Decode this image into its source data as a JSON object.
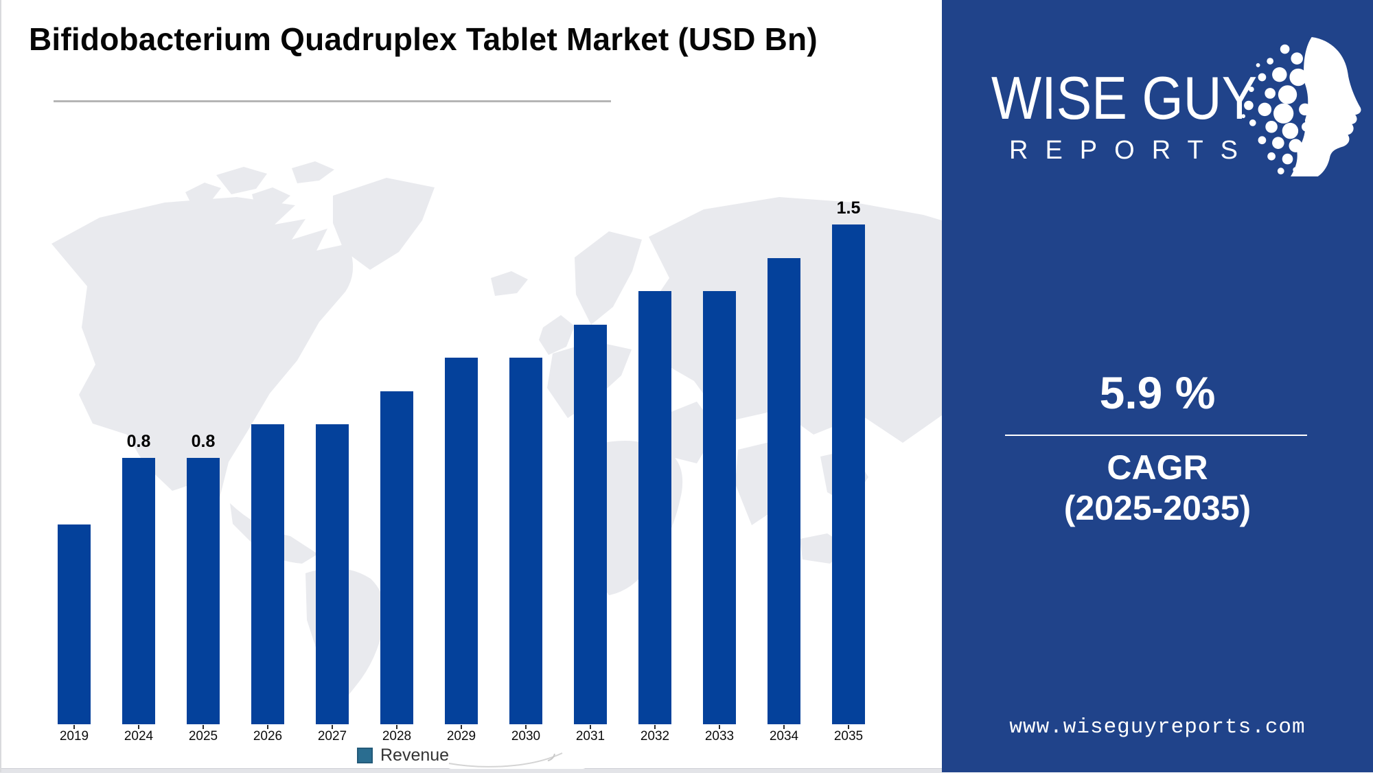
{
  "header": {
    "title": "Bifidobacterium Quadruplex Tablet Market (USD Bn)"
  },
  "chart_data": {
    "type": "bar",
    "title": "Bifidobacterium Quadruplex Tablet Market (USD Bn)",
    "unit": "USD Bn",
    "categories": [
      "2019",
      "2024",
      "2025",
      "2026",
      "2027",
      "2028",
      "2029",
      "2030",
      "2031",
      "2032",
      "2033",
      "2034",
      "2035"
    ],
    "values": [
      0.6,
      0.8,
      0.8,
      0.9,
      0.9,
      1.0,
      1.1,
      1.1,
      1.2,
      1.3,
      1.3,
      1.4,
      1.5
    ],
    "value_labels": {
      "2024": "0.8",
      "2025": "0.8",
      "2035": "1.5"
    },
    "legend": [
      {
        "label": "Revenue",
        "color": "#2a6d90"
      }
    ],
    "bar_color": "#04419b",
    "xlabel": "",
    "ylabel": "",
    "ylim": [
      0,
      1.6
    ],
    "grid": false,
    "legend_position": "bottom-center"
  },
  "sidebar": {
    "background": "#20438a",
    "logo": {
      "line1": "WISE GUY",
      "line2": "REPORTS"
    },
    "cagr_value": "5.9 %",
    "cagr_line1": "CAGR",
    "cagr_line2": "(2025-2035)",
    "website": "www.wiseguyreports.com"
  }
}
